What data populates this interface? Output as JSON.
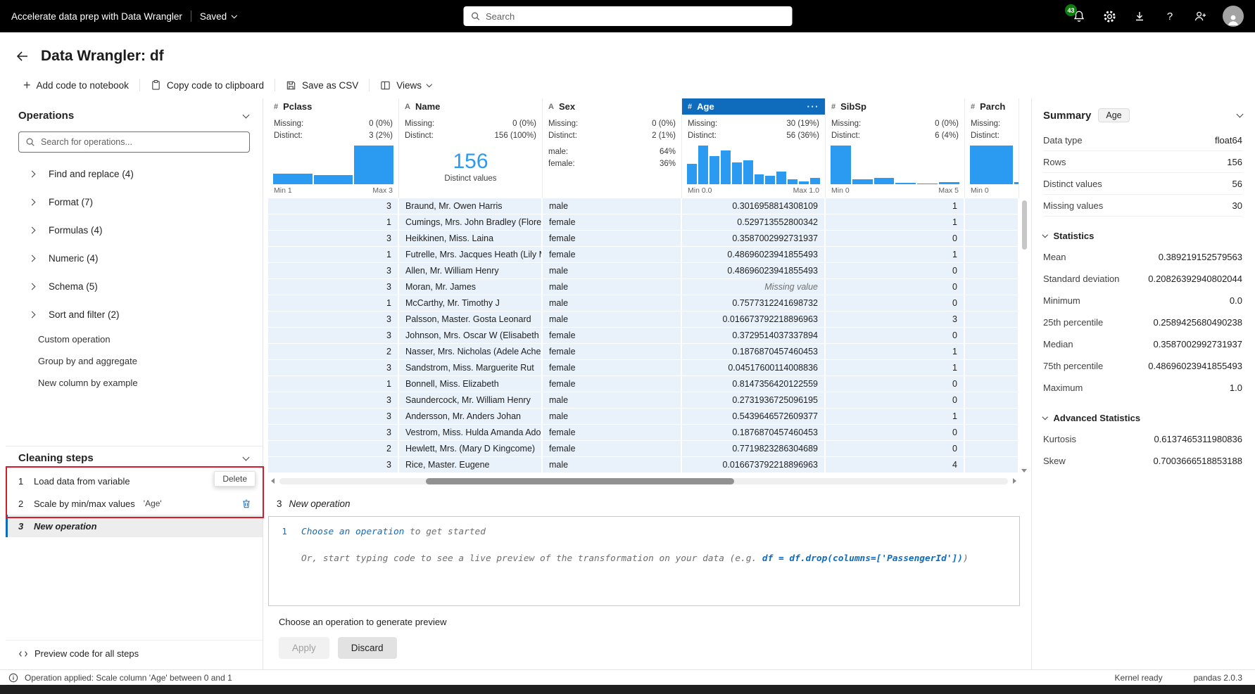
{
  "colors": {
    "accent": "#0f6cbd",
    "histogram": "#2b9bf2",
    "row_tint": "#e9f2fb",
    "annotation": "#d21e2b"
  },
  "topbar": {
    "app_title": "Accelerate data prep with Data Wrangler",
    "saved_label": "Saved",
    "search_placeholder": "Search",
    "notification_count": "43",
    "help_label": "?"
  },
  "header": {
    "title": "Data Wrangler: df"
  },
  "toolbar": {
    "add_code_label": "Add code to notebook",
    "copy_code_label": "Copy code to clipboard",
    "save_csv_label": "Save as CSV",
    "views_label": "Views"
  },
  "operations": {
    "title": "Operations",
    "search_placeholder": "Search for operations...",
    "groups": [
      {
        "label": "Find and replace (4)"
      },
      {
        "label": "Format (7)"
      },
      {
        "label": "Formulas (4)"
      },
      {
        "label": "Numeric (4)"
      },
      {
        "label": "Schema (5)"
      },
      {
        "label": "Sort and filter (2)"
      }
    ],
    "items": [
      "Custom operation",
      "Group by and aggregate",
      "New column by example"
    ]
  },
  "cleaning_steps": {
    "title": "Cleaning steps",
    "steps": [
      {
        "num": "1",
        "label": "Load data from variable",
        "detail": ""
      },
      {
        "num": "2",
        "label": "Scale by min/max values",
        "detail": "'Age'"
      },
      {
        "num": "3",
        "label": "New operation",
        "detail": ""
      }
    ],
    "delete_tooltip": "Delete",
    "preview_code_label": "Preview code for all steps"
  },
  "labels": {
    "missing": "Missing:",
    "distinct": "Distinct:"
  },
  "grid": {
    "columns": [
      {
        "type": "#",
        "name": "Pclass",
        "missing": "0 (0%)",
        "distinct": "3 (2%)",
        "min": "Min 1",
        "max": "Max 3",
        "hist": [
          27,
          24,
          100
        ]
      },
      {
        "type": "A",
        "name": "Name",
        "missing": "0 (0%)",
        "distinct": "156 (100%)",
        "big_number": "156",
        "big_label": "Distinct values"
      },
      {
        "type": "A",
        "name": "Sex",
        "missing": "0 (0%)",
        "distinct": "2 (1%)",
        "cats": [
          {
            "label": "male:",
            "pct": "64%"
          },
          {
            "label": "female:",
            "pct": "36%"
          }
        ]
      },
      {
        "type": "#",
        "name": "Age",
        "missing": "30 (19%)",
        "distinct": "56 (36%)",
        "min": "Min 0.0",
        "max": "Max 1.0",
        "menu": "···",
        "hist": [
          52,
          100,
          72,
          88,
          57,
          62,
          26,
          21,
          33,
          13,
          8,
          16
        ]
      },
      {
        "type": "#",
        "name": "SibSp",
        "missing": "0 (0%)",
        "distinct": "6 (4%)",
        "min": "Min 0",
        "max": "Max 5",
        "hist": [
          100,
          12,
          16,
          4,
          2,
          6
        ]
      },
      {
        "type": "#",
        "name": "Parch",
        "missing": "",
        "distinct": "",
        "min": "Min 0",
        "max": "",
        "hist": [
          100,
          5,
          3
        ]
      }
    ],
    "rows": [
      [
        "3",
        "Braund, Mr. Owen Harris",
        "male",
        "0.3016958814308109",
        "1",
        ""
      ],
      [
        "1",
        "Cumings, Mrs. John Bradley (Florenc",
        "female",
        "0.529713552800342",
        "1",
        ""
      ],
      [
        "3",
        "Heikkinen, Miss. Laina",
        "female",
        "0.3587002992731937",
        "0",
        ""
      ],
      [
        "1",
        "Futrelle, Mrs. Jacques Heath (Lily Ma",
        "female",
        "0.48696023941855493",
        "1",
        ""
      ],
      [
        "3",
        "Allen, Mr. William Henry",
        "male",
        "0.48696023941855493",
        "0",
        ""
      ],
      [
        "3",
        "Moran, Mr. James",
        "male",
        "Missing value",
        "0",
        ""
      ],
      [
        "1",
        "McCarthy, Mr. Timothy J",
        "male",
        "0.7577312241698732",
        "0",
        ""
      ],
      [
        "3",
        "Palsson, Master. Gosta Leonard",
        "male",
        "0.016673792218896963",
        "3",
        ""
      ],
      [
        "3",
        "Johnson, Mrs. Oscar W (Elisabeth Vil",
        "female",
        "0.3729514037337894",
        "0",
        ""
      ],
      [
        "2",
        "Nasser, Mrs. Nicholas (Adele Achem",
        "female",
        "0.1876870457460453",
        "1",
        ""
      ],
      [
        "3",
        "Sandstrom, Miss. Marguerite Rut",
        "female",
        "0.04517600114008836",
        "1",
        ""
      ],
      [
        "1",
        "Bonnell, Miss. Elizabeth",
        "female",
        "0.8147356420122559",
        "0",
        ""
      ],
      [
        "3",
        "Saundercock, Mr. William Henry",
        "male",
        "0.2731936725096195",
        "0",
        ""
      ],
      [
        "3",
        "Andersson, Mr. Anders Johan",
        "male",
        "0.5439646572609377",
        "1",
        ""
      ],
      [
        "3",
        "Vestrom, Miss. Hulda Amanda Adolf",
        "female",
        "0.1876870457460453",
        "0",
        ""
      ],
      [
        "2",
        "Hewlett, Mrs. (Mary D Kingcome)",
        "female",
        "0.7719823286304689",
        "0",
        ""
      ],
      [
        "3",
        "Rice, Master. Eugene",
        "male",
        "0.016673792218896963",
        "4",
        ""
      ]
    ],
    "missing_cell_text": "Missing value"
  },
  "code_panel": {
    "step_number": "3",
    "step_title": "New operation",
    "line_number": "1",
    "hint_link": "Choose an operation",
    "hint_rest": " to get started",
    "hint2_prefix": "Or, start typing code to see a live preview of the transformation on your data (e.g. ",
    "hint2_code": "df = df.drop(columns=['PassengerId'])",
    "hint2_suffix": ")",
    "preview_hint": "Choose an operation to generate preview",
    "apply_label": "Apply",
    "discard_label": "Discard"
  },
  "summary": {
    "title": "Summary",
    "badge": "Age",
    "fields": [
      {
        "label": "Data type",
        "value": "float64"
      },
      {
        "label": "Rows",
        "value": "156"
      },
      {
        "label": "Distinct values",
        "value": "56"
      },
      {
        "label": "Missing values",
        "value": "30"
      }
    ],
    "statistics_title": "Statistics",
    "statistics": [
      {
        "label": "Mean",
        "value": "0.389219152579563"
      },
      {
        "label": "Standard deviation",
        "value": "0.20826392940802044"
      },
      {
        "label": "Minimum",
        "value": "0.0"
      },
      {
        "label": "25th percentile",
        "value": "0.2589425680490238"
      },
      {
        "label": "Median",
        "value": "0.3587002992731937"
      },
      {
        "label": "75th percentile",
        "value": "0.48696023941855493"
      },
      {
        "label": "Maximum",
        "value": "1.0"
      }
    ],
    "advanced_title": "Advanced Statistics",
    "advanced": [
      {
        "label": "Kurtosis",
        "value": "0.6137465311980836"
      },
      {
        "label": "Skew",
        "value": "0.7003666518853188"
      }
    ]
  },
  "statusbar": {
    "message": "Operation applied: Scale column 'Age' between 0 and 1",
    "kernel_status": "Kernel ready",
    "pandas_version": "pandas 2.0.3"
  }
}
